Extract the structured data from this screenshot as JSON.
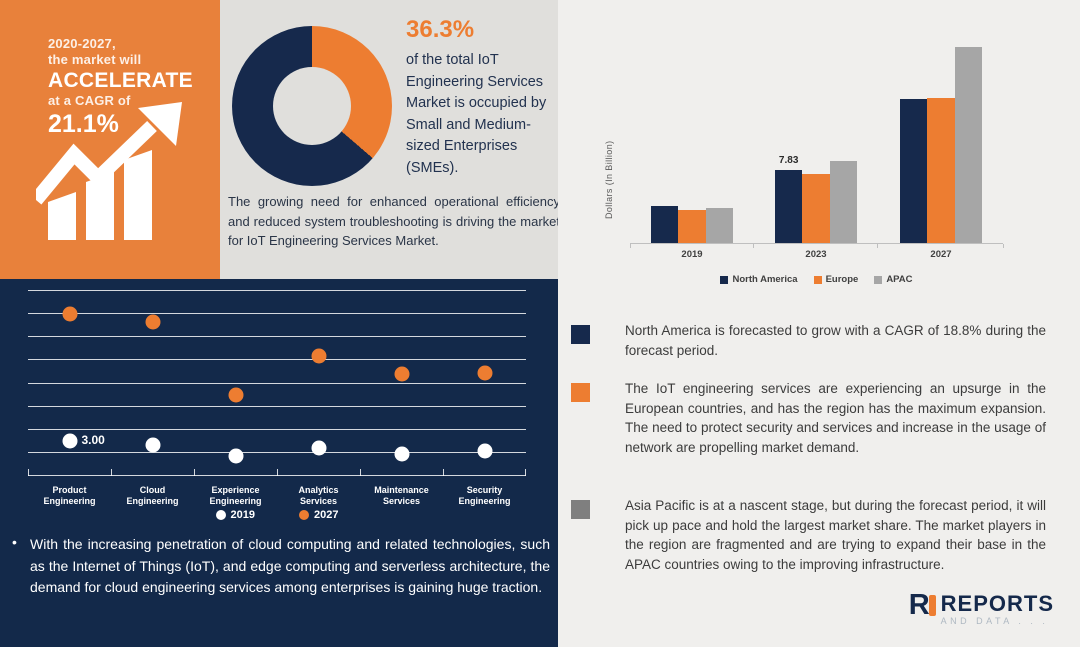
{
  "colors": {
    "orange_panel": "#E8813B",
    "accent_orange": "#ED7D31",
    "navy": "#16294C",
    "panel_navy": "#13294A",
    "gray_box": "#E0DFDC",
    "page_bg": "#F0EFED",
    "bar_gray": "#A6A6A6",
    "bullet_gray": "#7F7F7F"
  },
  "accelerate_panel": {
    "period": "2020-2027,",
    "line2": "the market will",
    "headline": "ACCELERATE",
    "line4": "at a CAGR of",
    "cagr": "21.1%"
  },
  "sme_panel": {
    "stat": "36.3%",
    "stat_description": "of the total IoT Engineering Services Market is occupied by Small and Medium-sized Enterprises (SMEs).",
    "paragraph": "The growing need for enhanced operational efficiency and reduced system troubleshooting is driving the market for IoT Engineering Services Market.",
    "donut": {
      "value_pct": 36.3,
      "slice_color": "#ED7D31",
      "rest_color": "#16294C"
    }
  },
  "chart_data": [
    {
      "type": "bar",
      "title": "",
      "ylabel": "Dollars (In Billion)",
      "categories": [
        "2019",
        "2023",
        "2027"
      ],
      "series": [
        {
          "name": "North America",
          "color": "#16294C",
          "values": [
            4.0,
            7.83,
            15.5
          ]
        },
        {
          "name": "Europe",
          "color": "#ED7D31",
          "values": [
            3.5,
            7.4,
            15.6
          ]
        },
        {
          "name": "APAC",
          "color": "#A6A6A6",
          "values": [
            3.8,
            8.8,
            21.0
          ]
        }
      ],
      "data_labels": [
        {
          "series": "North America",
          "category": "2023",
          "text": "7.83"
        }
      ],
      "ylim": [
        0,
        22
      ],
      "legend_position": "bottom",
      "grid": false
    },
    {
      "type": "scatter",
      "title": "",
      "categories": [
        "Product Engineering",
        "Cloud Engineering",
        "Experience Engineering",
        "Analytics Services",
        "Maintenance Services",
        "Security Engineering"
      ],
      "series": [
        {
          "name": "2019",
          "color": "#FFFFFF",
          "values": [
            3.0,
            2.7,
            1.7,
            2.4,
            1.9,
            2.2
          ]
        },
        {
          "name": "2027",
          "color": "#ED7D31",
          "values": [
            14.0,
            13.3,
            7.0,
            10.4,
            8.8,
            8.9
          ]
        }
      ],
      "data_labels": [
        {
          "series": "2019",
          "category": "Product Engineering",
          "text": "3.00"
        }
      ],
      "ylim": [
        0,
        16
      ],
      "gridline_step": 2,
      "legend_position": "bottom",
      "grid": true
    }
  ],
  "left_panel": {
    "bullet_marker": "•",
    "bullet_text": "With the increasing penetration of cloud computing and related technologies, such as the Internet of Things (IoT), and edge computing and serverless architecture, the demand for cloud engineering services among enterprises is gaining huge traction."
  },
  "right_panel": {
    "bullets": [
      {
        "color": "#16294C",
        "text": "North America is forecasted to grow with a CAGR of 18.8% during the forecast period."
      },
      {
        "color": "#ED7D31",
        "text": "The IoT engineering services are experiencing an upsurge in the European countries, and has the region has the maximum expansion. The need to protect security and services and increase in the usage of network are propelling market demand."
      },
      {
        "color": "#7F7F7F",
        "text": "Asia Pacific is at a nascent stage, but during the forecast period, it will pick up pace and hold the largest market share. The market players in the region are fragmented and are trying to expand their base in the APAC countries owing to the improving infrastructure."
      }
    ]
  },
  "logo": {
    "mark": "R",
    "brand": "REPORTS",
    "sub": "AND DATA . . ."
  }
}
